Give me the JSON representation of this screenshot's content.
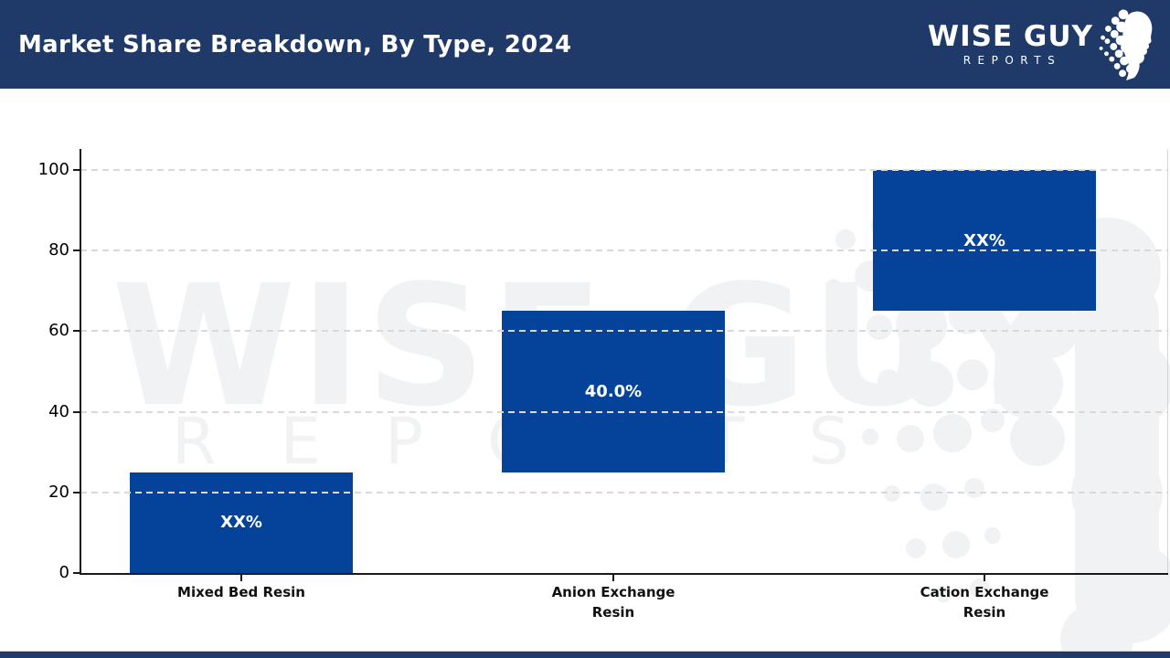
{
  "header": {
    "title": "Market Share Breakdown, By Type, 2024",
    "logo": {
      "name_line": "WISE GUY",
      "sub_line": "REPORTS"
    }
  },
  "chart_data": {
    "type": "bar",
    "variant": "floating-segment-breakdown",
    "title": "Market Share Breakdown, By Type, 2024",
    "categories": [
      "Mixed Bed Resin",
      "Anion Exchange Resin",
      "Cation Exchange Resin"
    ],
    "tick_labels": [
      "Mixed Bed Resin",
      "Anion Exchange\nResin",
      "Cation Exchange\nResin"
    ],
    "segments": [
      {
        "category": "Mixed Bed Resin",
        "start": 0,
        "end": 25,
        "value": 25,
        "label": "XX%"
      },
      {
        "category": "Anion Exchange Resin",
        "start": 25,
        "end": 65,
        "value": 40,
        "label": "40.0%"
      },
      {
        "category": "Cation Exchange Resin",
        "start": 65,
        "end": 100,
        "value": 35,
        "label": "XX%"
      }
    ],
    "y_ticks": [
      0,
      20,
      40,
      60,
      80,
      100
    ],
    "ylim": [
      0,
      105
    ],
    "xlabel": "",
    "ylabel": "",
    "legend": null,
    "grid": "horizontal-dashed",
    "bar_color": "#05439b"
  },
  "watermark": {
    "line1": "WISE GUY",
    "line2": "REPORTS"
  },
  "colors": {
    "header_bg": "#1f3a68",
    "bar": "#05439b",
    "grid": "#d9d9d9",
    "axis": "#1a1a1a",
    "watermark": "#f1f2f4",
    "title_text": "#ffffff",
    "footer_bar": "#1f3a68"
  }
}
